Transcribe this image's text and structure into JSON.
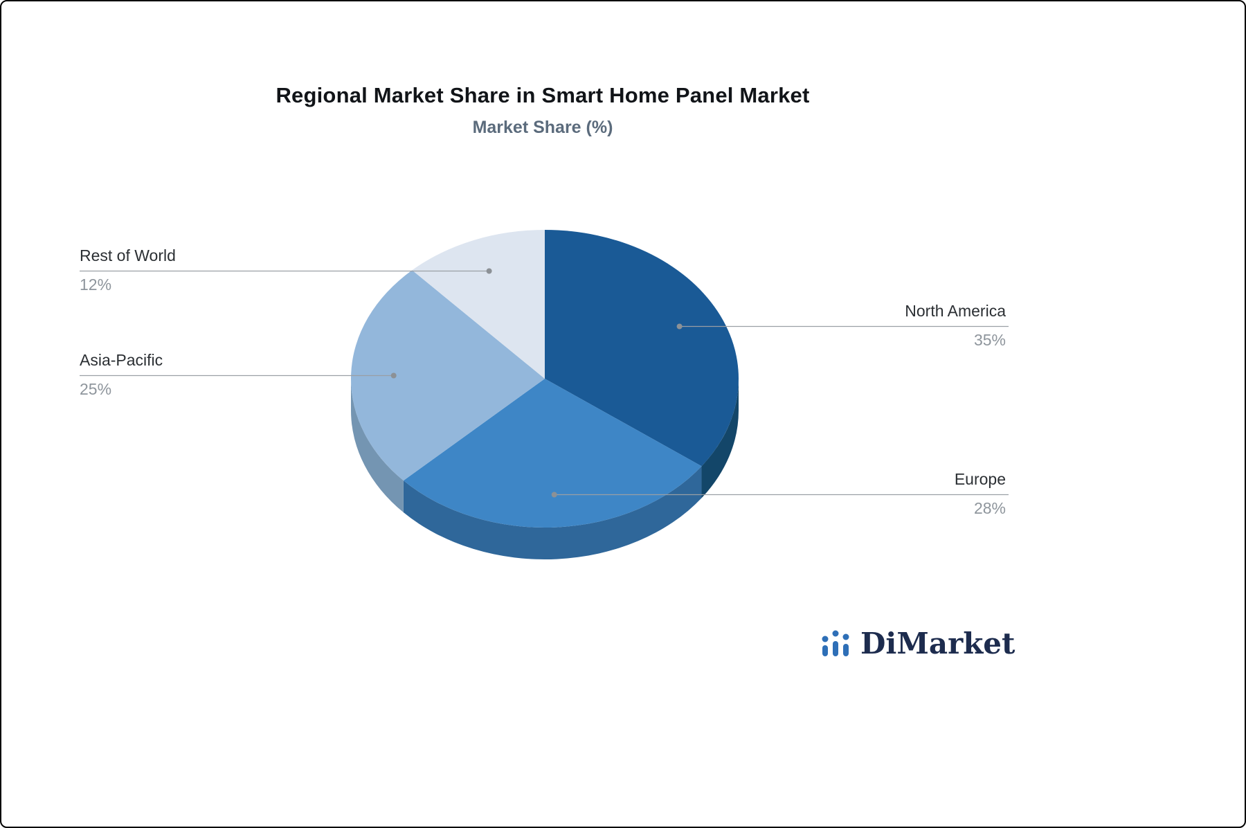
{
  "chart_data": {
    "type": "pie",
    "title": "Regional Market Share in Smart Home Panel Market",
    "subtitle": "Market Share (%)",
    "unit": "%",
    "legend_position": "none",
    "style": "3d-pie-with-callout-lines",
    "categories": [
      "North America",
      "Europe",
      "Asia-Pacific",
      "Rest of World"
    ],
    "values": [
      35,
      28,
      25,
      12
    ],
    "slices": [
      {
        "label": "North America",
        "value": 35,
        "pct_label": "35%",
        "color": "#1A5A96",
        "side_color": "#134669",
        "side": "right"
      },
      {
        "label": "Europe",
        "value": 28,
        "pct_label": "28%",
        "color": "#3E86C6",
        "side_color": "#2F679A",
        "side": "right"
      },
      {
        "label": "Asia-Pacific",
        "value": 25,
        "pct_label": "25%",
        "color": "#93B7DB",
        "side_color": "#7495B2",
        "side": "left"
      },
      {
        "label": "Rest of World",
        "value": 12,
        "pct_label": "12%",
        "color": "#DDE5F0",
        "side_color": "#B9C4D2",
        "side": "left"
      }
    ],
    "start_angle_deg": 0,
    "label_line_color": "#9a9fa4",
    "dot_color": "#8c9196",
    "label_text_color": "#2b2f33",
    "value_text_color": "#8e959c"
  },
  "branding": {
    "logo_text": "DiMarket",
    "logo_icon": "bar-dots-chart-icon",
    "logo_icon_color": "#2E6FB7",
    "logo_text_color": "#1d2c4e"
  }
}
